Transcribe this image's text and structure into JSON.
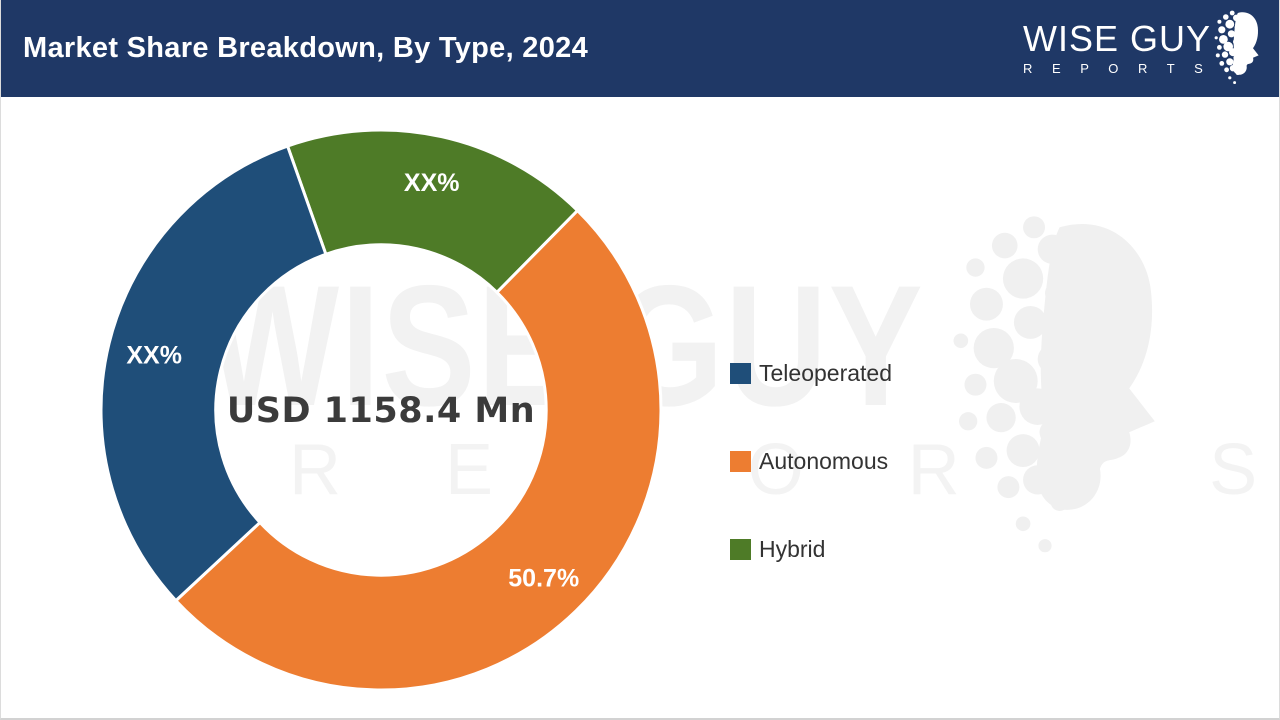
{
  "header": {
    "title": "Market Share Breakdown, By Type, 2024",
    "background": "#1f3866",
    "logo": {
      "line1": "WISE GUY",
      "line2": "R E P O R T S"
    }
  },
  "chart_data": {
    "type": "donut",
    "title": "Market Share Breakdown, By Type, 2024",
    "center_label": "USD 1158.4 Mn",
    "categories": [
      "Teleoperated",
      "Autonomous",
      "Hybrid"
    ],
    "values": [
      31.5,
      50.7,
      17.8
    ],
    "displayed_labels": [
      "XX%",
      "50.7%",
      "XX%"
    ],
    "colors": [
      "#1f4e79",
      "#ed7d31",
      "#4e7b27"
    ],
    "start_angle_deg": -19.5,
    "draw_order": [
      2,
      1,
      0
    ],
    "donut_hole_ratio": 0.59,
    "legend_position": "right"
  },
  "legend": {
    "items": [
      {
        "label": "Teleoperated",
        "color": "#1f4e79"
      },
      {
        "label": "Autonomous",
        "color": "#ed7d31"
      },
      {
        "label": "Hybrid",
        "color": "#4e7b27"
      }
    ]
  },
  "watermark": {
    "line1": "WISE GUY",
    "line2": "R E P O R T S"
  }
}
